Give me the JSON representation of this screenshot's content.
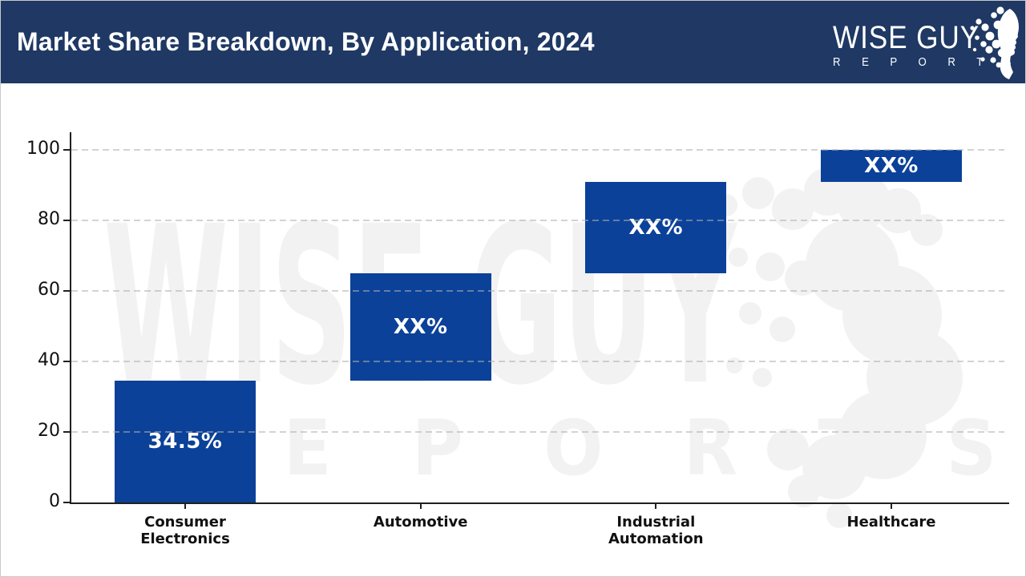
{
  "header": {
    "title": "Market Share Breakdown, By Application, 2024",
    "bg_color": "#1f3864",
    "logo": {
      "line1": "WISE GUY",
      "line2": "R E P O R T S"
    }
  },
  "watermark": {
    "line1": "WISE GUY",
    "line2": "R E P O R T S",
    "color": "#f2f2f2"
  },
  "chart_data": {
    "type": "bar",
    "subtype": "floating-segment waterfall of market share",
    "title": "Market Share Breakdown, By Application, 2024",
    "categories": [
      "Consumer Electronics",
      "Automotive",
      "Industrial Automation",
      "Healthcare"
    ],
    "category_lines": [
      [
        "Consumer",
        "Electronics"
      ],
      [
        "Automotive"
      ],
      [
        "Industrial",
        "Automation"
      ],
      [
        "Healthcare"
      ]
    ],
    "segments": [
      {
        "category": "Consumer Electronics",
        "start": 0,
        "end": 34.5,
        "label": "34.5%"
      },
      {
        "category": "Automotive",
        "start": 34.5,
        "end": 65,
        "label": "XX%"
      },
      {
        "category": "Industrial Automation",
        "start": 65,
        "end": 91,
        "label": "XX%"
      },
      {
        "category": "Healthcare",
        "start": 91,
        "end": 100,
        "label": "XX%"
      }
    ],
    "xlabel": "",
    "ylabel": "",
    "ylim": [
      0,
      100
    ],
    "yticks": [
      0,
      20,
      40,
      60,
      80,
      100
    ],
    "grid": {
      "horizontal": true,
      "style": "dashed",
      "drawn_over_bars": true
    },
    "legend": null,
    "bar_color": "#0b4199",
    "bar_label_color": "#ffffff",
    "axis_color": "#202020"
  }
}
